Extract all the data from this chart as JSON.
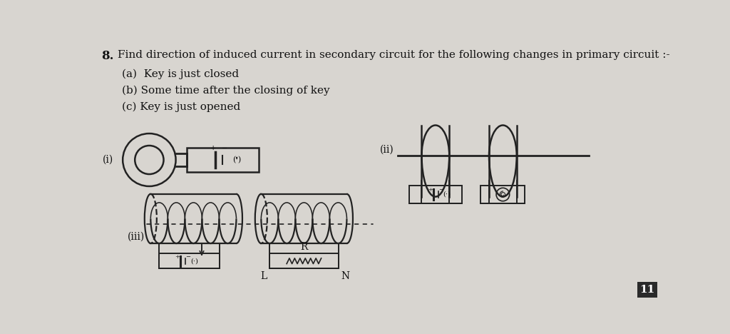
{
  "bg_color": "#d8d5d0",
  "title_number": "8.",
  "title_text": "Find direction of induced current in secondary circuit for the following changes in primary circuit :-",
  "items": [
    "(a)  Key is just closed",
    "(b) Some time after the closing of key",
    "(c) Key is just opened"
  ],
  "labels": {
    "i": "(i)",
    "ii": "(ii)",
    "iii": "(iii)"
  },
  "page_number": "11",
  "line_color": "#222222",
  "text_color": "#111111"
}
